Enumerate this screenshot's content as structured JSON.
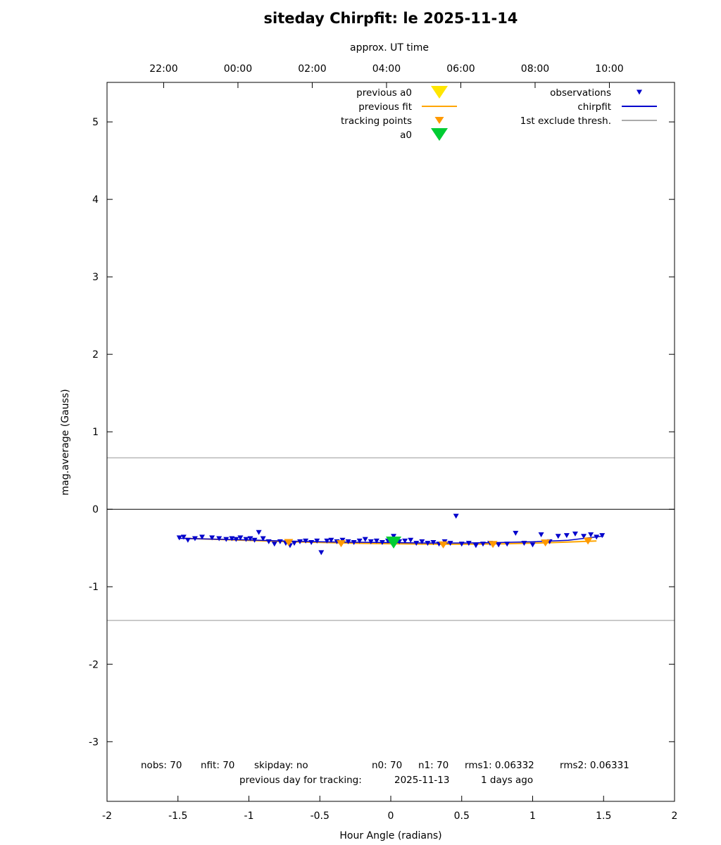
{
  "title": "siteday Chirpfit:  le  2025-11-14",
  "colors": {
    "threshold": "#ababab",
    "blue": "#0000cc",
    "orange": "#ffa500",
    "tracking_orange": "#ff9900",
    "yellow": "#ffe600",
    "green": "#00cc33"
  },
  "legend": {
    "left": [
      {
        "label": "previous a0",
        "marker": "triangle-large",
        "color": "#ffe600"
      },
      {
        "label": "previous fit",
        "marker": "line",
        "color": "#ffa500"
      },
      {
        "label": "tracking points",
        "marker": "triangle-medium",
        "color": "#ff9900"
      },
      {
        "label": "a0",
        "marker": "triangle-large",
        "color": "#00cc33"
      }
    ],
    "right": [
      {
        "label": "observations",
        "marker": "triangle-small",
        "color": "#0000cc"
      },
      {
        "label": "chirpfit",
        "marker": "line",
        "color": "#0000cc"
      },
      {
        "label": "1st exclude thresh.",
        "marker": "line",
        "color": "#ababab"
      }
    ]
  },
  "stats": {
    "line1": [
      "nobs: 70",
      "nfit: 70",
      "skipday: no",
      "n0: 70",
      "n1: 70",
      "rms1: 0.06332",
      "rms2: 0.06331"
    ],
    "line2": [
      "previous day for tracking:",
      "2025-11-13",
      "1 days ago"
    ]
  },
  "chart_data": {
    "type": "scatter",
    "title": "siteday Chirpfit:  le  2025-11-14",
    "xlabel": "Hour Angle (radians)",
    "ylabel": "mag.average (Gauss)",
    "x2label": "approx. UT time",
    "xlim": [
      -2,
      2
    ],
    "ylim": [
      -3.77,
      5.51
    ],
    "x_ticks": [
      -2,
      -1.5,
      -1,
      -0.5,
      0,
      0.5,
      1,
      1.5,
      2
    ],
    "y_ticks": [
      5,
      4,
      3,
      2,
      1,
      0,
      -1,
      -2,
      -3
    ],
    "x2_ticks": [
      {
        "label": "22:00",
        "ha": -1.6008
      },
      {
        "label": "00:00",
        "ha": -1.0772
      },
      {
        "label": "02:00",
        "ha": -0.5536
      },
      {
        "label": "04:00",
        "ha": -0.03
      },
      {
        "label": "06:00",
        "ha": 0.4936
      },
      {
        "label": "08:00",
        "ha": 1.0172
      },
      {
        "label": "10:00",
        "ha": 1.5408
      }
    ],
    "zero_line": 0,
    "exclude_thresholds": [
      0.665,
      -1.435
    ],
    "grid": false,
    "legend_position": "top-inside",
    "series": {
      "observations": {
        "name": "observations",
        "color": "#0000cc",
        "points": [
          [
            -1.49,
            -0.37
          ],
          [
            -1.46,
            -0.36
          ],
          [
            -1.43,
            -0.4
          ],
          [
            -1.38,
            -0.38
          ],
          [
            -1.33,
            -0.36
          ],
          [
            -1.26,
            -0.37
          ],
          [
            -1.21,
            -0.38
          ],
          [
            -1.16,
            -0.39
          ],
          [
            -1.12,
            -0.38
          ],
          [
            -1.09,
            -0.39
          ],
          [
            -1.06,
            -0.37
          ],
          [
            -1.02,
            -0.39
          ],
          [
            -0.99,
            -0.38
          ],
          [
            -0.96,
            -0.4
          ],
          [
            -0.93,
            -0.3
          ],
          [
            -0.9,
            -0.38
          ],
          [
            -0.86,
            -0.42
          ],
          [
            -0.82,
            -0.45
          ],
          [
            -0.78,
            -0.42
          ],
          [
            -0.74,
            -0.44
          ],
          [
            -0.71,
            -0.47
          ],
          [
            -0.68,
            -0.44
          ],
          [
            -0.64,
            -0.42
          ],
          [
            -0.6,
            -0.41
          ],
          [
            -0.56,
            -0.43
          ],
          [
            -0.52,
            -0.41
          ],
          [
            -0.49,
            -0.56
          ],
          [
            -0.45,
            -0.41
          ],
          [
            -0.42,
            -0.4
          ],
          [
            -0.38,
            -0.42
          ],
          [
            -0.34,
            -0.4
          ],
          [
            -0.3,
            -0.42
          ],
          [
            -0.26,
            -0.43
          ],
          [
            -0.22,
            -0.41
          ],
          [
            -0.18,
            -0.39
          ],
          [
            -0.14,
            -0.42
          ],
          [
            -0.1,
            -0.41
          ],
          [
            -0.06,
            -0.43
          ],
          [
            -0.02,
            -0.41
          ],
          [
            0.02,
            -0.35
          ],
          [
            0.06,
            -0.42
          ],
          [
            0.1,
            -0.41
          ],
          [
            0.14,
            -0.4
          ],
          [
            0.18,
            -0.44
          ],
          [
            0.22,
            -0.42
          ],
          [
            0.26,
            -0.44
          ],
          [
            0.3,
            -0.43
          ],
          [
            0.34,
            -0.45
          ],
          [
            0.38,
            -0.42
          ],
          [
            0.42,
            -0.44
          ],
          [
            0.46,
            -0.09
          ],
          [
            0.5,
            -0.45
          ],
          [
            0.55,
            -0.44
          ],
          [
            0.6,
            -0.47
          ],
          [
            0.65,
            -0.45
          ],
          [
            0.7,
            -0.44
          ],
          [
            0.76,
            -0.46
          ],
          [
            0.82,
            -0.45
          ],
          [
            0.88,
            -0.31
          ],
          [
            0.94,
            -0.44
          ],
          [
            1.0,
            -0.46
          ],
          [
            1.06,
            -0.33
          ],
          [
            1.12,
            -0.42
          ],
          [
            1.18,
            -0.35
          ],
          [
            1.24,
            -0.34
          ],
          [
            1.3,
            -0.32
          ],
          [
            1.36,
            -0.35
          ],
          [
            1.41,
            -0.33
          ],
          [
            1.45,
            -0.36
          ],
          [
            1.49,
            -0.34
          ]
        ]
      },
      "chirpfit": {
        "name": "chirpfit",
        "color": "#0000cc",
        "points": [
          [
            -1.5,
            -0.375
          ],
          [
            -1.25,
            -0.385
          ],
          [
            -1.0,
            -0.395
          ],
          [
            -0.75,
            -0.41
          ],
          [
            -0.5,
            -0.42
          ],
          [
            -0.25,
            -0.425
          ],
          [
            0.0,
            -0.43
          ],
          [
            0.25,
            -0.435
          ],
          [
            0.5,
            -0.435
          ],
          [
            0.75,
            -0.43
          ],
          [
            1.0,
            -0.42
          ],
          [
            1.25,
            -0.4
          ],
          [
            1.5,
            -0.345
          ]
        ]
      },
      "previous_fit": {
        "name": "previous fit",
        "color": "#ffa500",
        "points": [
          [
            -1.45,
            -0.375
          ],
          [
            -1.2,
            -0.39
          ],
          [
            -0.95,
            -0.405
          ],
          [
            -0.7,
            -0.42
          ],
          [
            -0.45,
            -0.43
          ],
          [
            -0.2,
            -0.44
          ],
          [
            0.05,
            -0.445
          ],
          [
            0.3,
            -0.45
          ],
          [
            0.55,
            -0.45
          ],
          [
            0.8,
            -0.445
          ],
          [
            1.05,
            -0.435
          ],
          [
            1.3,
            -0.42
          ],
          [
            1.45,
            -0.41
          ]
        ]
      },
      "tracking_points": {
        "name": "tracking points",
        "color": "#ff9900",
        "points": [
          [
            -0.72,
            -0.43
          ],
          [
            -0.35,
            -0.445
          ],
          [
            0.37,
            -0.46
          ],
          [
            0.72,
            -0.455
          ],
          [
            1.09,
            -0.435
          ],
          [
            1.39,
            -0.41
          ]
        ]
      },
      "a0": {
        "name": "a0",
        "color": "#00cc33",
        "points": [
          [
            0.02,
            -0.43
          ]
        ]
      }
    }
  }
}
